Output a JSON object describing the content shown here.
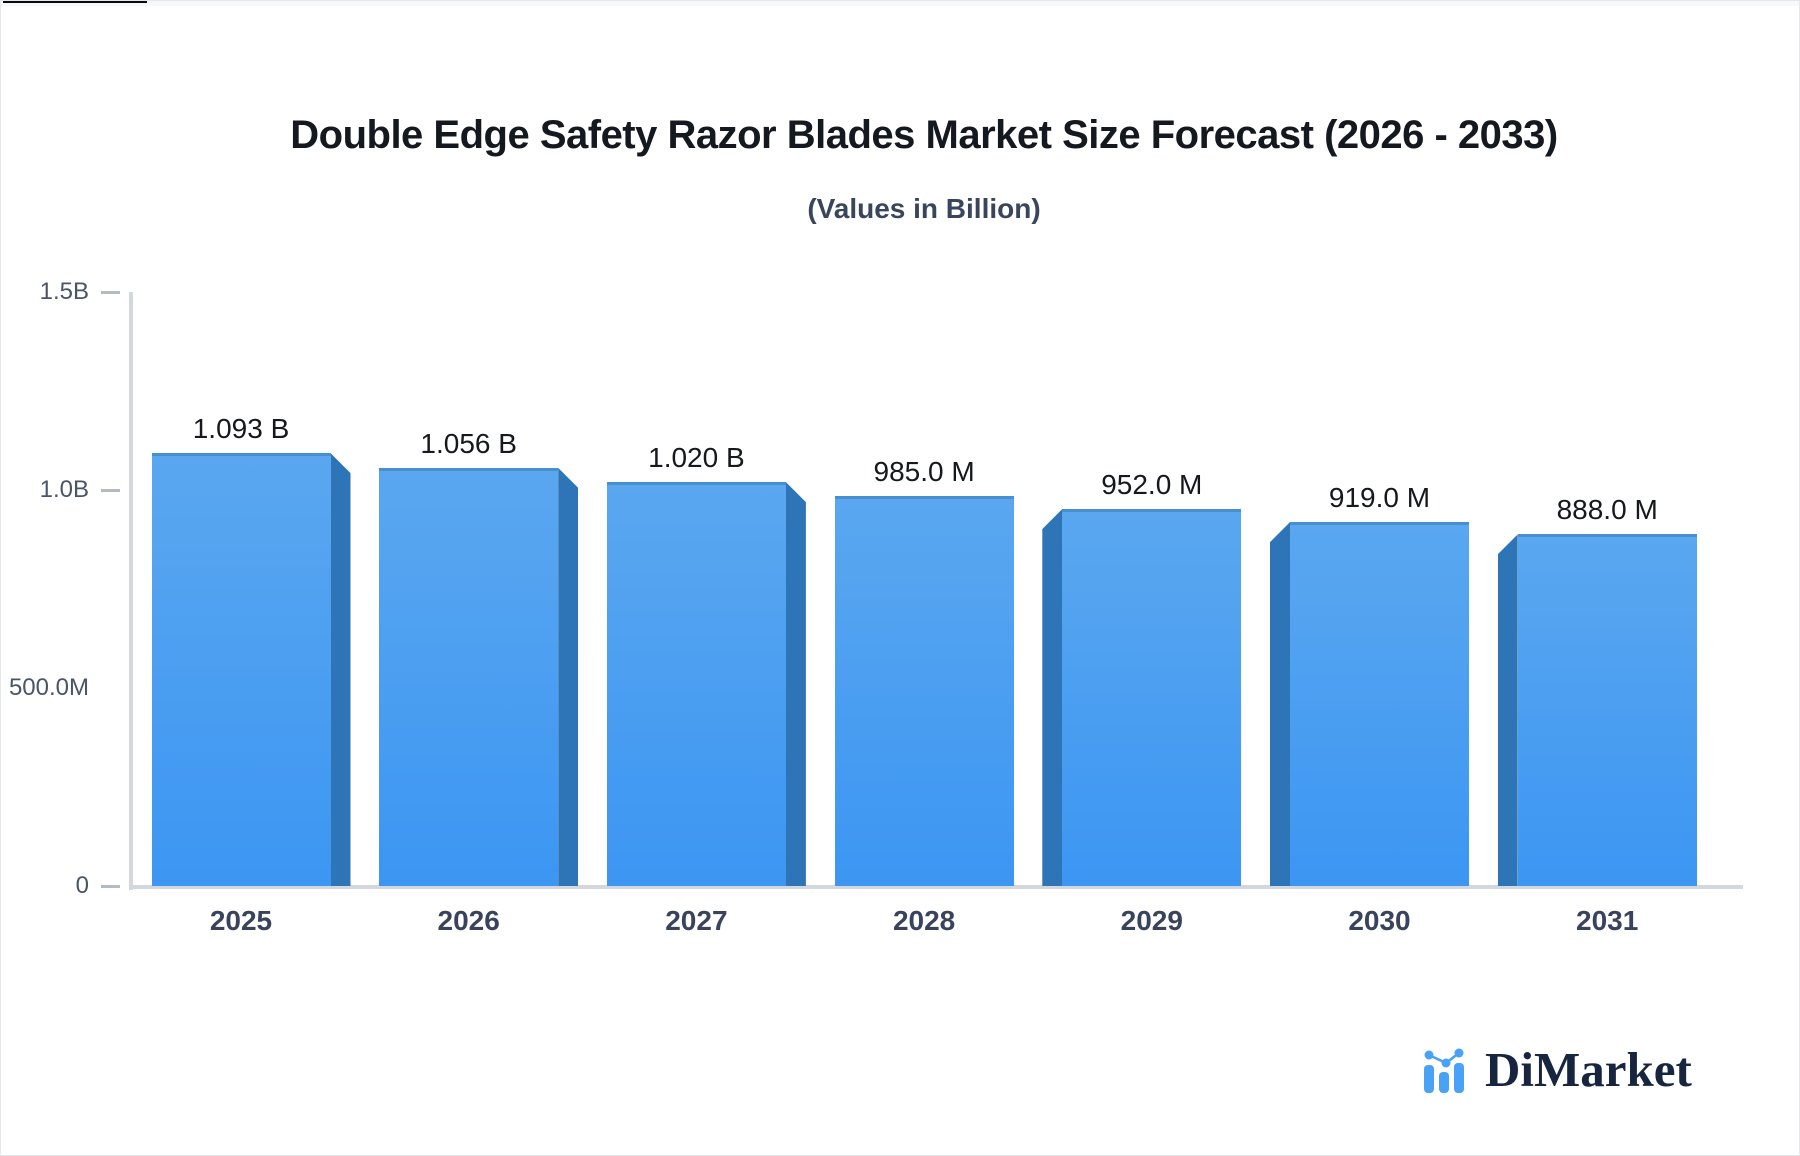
{
  "header": {
    "title": "Double Edge Safety Razor Blades Market Size Forecast (2026 - 2033)",
    "subtitle": "(Values in Billion)"
  },
  "chart_data": {
    "type": "bar",
    "title": "Double Edge Safety Razor Blades Market Size Forecast (2026 - 2033)",
    "subtitle": "(Values in Billion)",
    "categories": [
      "2025",
      "2026",
      "2027",
      "2028",
      "2029",
      "2030",
      "2031"
    ],
    "values": [
      1093000000,
      1056000000,
      1020000000,
      985000000,
      952000000,
      919000000,
      888000000
    ],
    "value_labels": [
      "1.093 B",
      "1.056 B",
      "1.020 B",
      "985.0 M",
      "952.0 M",
      "919.0 M",
      "888.0 M"
    ],
    "ylim": [
      0,
      1500000000
    ],
    "yticks": [
      {
        "label": "1.5B",
        "value": 1500000000,
        "dash": true
      },
      {
        "label": "1.0B",
        "value": 1000000000,
        "dash": true
      },
      {
        "label": "500.0M",
        "value": 500000000,
        "dash": false
      },
      {
        "label": "0",
        "value": 0,
        "dash": true
      }
    ],
    "grid": false,
    "legend": false,
    "style_3d": true,
    "colors": {
      "bar_face_top": "#5aa7f0",
      "bar_face_bottom": "#3c96f2",
      "bar_top_edge": "#478fd0",
      "bar_side_panel": "#2e75b7",
      "axis_line": "#d4d7dd",
      "tick_dash": "#b3bac4"
    }
  },
  "logo": {
    "text": "DiMarket",
    "icon": "mini-bar-chart-icon",
    "icon_color": "#4aa2f6",
    "text_color": "#18253e"
  }
}
